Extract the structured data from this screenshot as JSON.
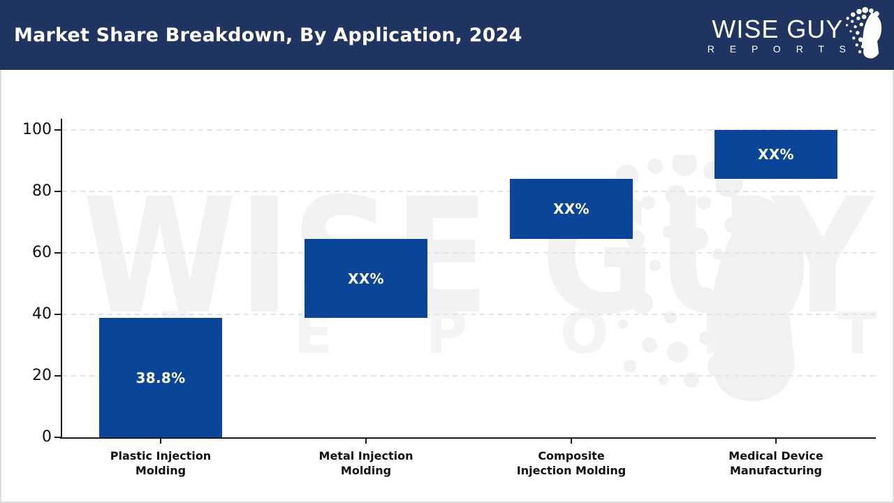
{
  "header": {
    "title": "Market Share Breakdown, By Application, 2024",
    "logo": {
      "line1": "WISE GUY",
      "line2": "R E P O R T S"
    }
  },
  "watermark": {
    "line1": "WISE GUY",
    "line2": "R E P O R T S"
  },
  "chart_data": {
    "type": "bar",
    "subtype": "waterfall",
    "title": "Market Share Breakdown, By Application, 2024",
    "categories": [
      "Plastic Injection Molding",
      "Metal Injection Molding",
      "Composite Injection Molding",
      "Medical Device Manufacturing"
    ],
    "category_label_lines": [
      [
        "Plastic Injection",
        "Molding"
      ],
      [
        "Metal Injection",
        "Molding"
      ],
      [
        "Composite",
        "Injection Molding"
      ],
      [
        "Medical Device",
        "Manufacturing"
      ]
    ],
    "segments": [
      {
        "category": "Plastic Injection Molding",
        "start": 0,
        "end": 38.8,
        "label": "38.8%"
      },
      {
        "category": "Metal Injection Molding",
        "start": 38.8,
        "end": 64.5,
        "label": "XX%"
      },
      {
        "category": "Composite Injection Molding",
        "start": 64.5,
        "end": 84,
        "label": "XX%"
      },
      {
        "category": "Medical Device Manufacturing",
        "start": 84,
        "end": 100,
        "label": "XX%"
      }
    ],
    "yticks": [
      0,
      20,
      40,
      60,
      80,
      100
    ],
    "ylim": [
      0,
      103.5
    ],
    "xlabel": "",
    "ylabel": "",
    "legend": "none",
    "grid": "horizontal-dashed",
    "bar_color": "#0a4598",
    "bar_label_color": "#ffffff",
    "axis_color": "#1a1a1a",
    "grid_color": "#e3e3e3",
    "header_color": "#1f3461"
  }
}
